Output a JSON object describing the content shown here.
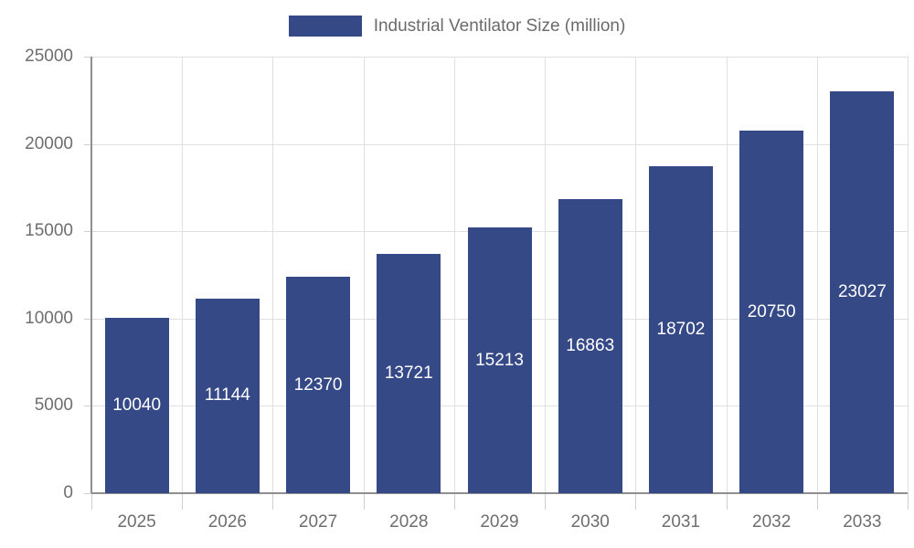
{
  "chart_data": {
    "type": "bar",
    "title": "Industrial Ventilator Size (million)",
    "categories": [
      "2025",
      "2026",
      "2027",
      "2028",
      "2029",
      "2030",
      "2031",
      "2032",
      "2033"
    ],
    "values": [
      10040,
      11144,
      12370,
      13721,
      15213,
      16863,
      18702,
      20750,
      23027
    ],
    "xlabel": "",
    "ylabel": "",
    "ylim": [
      0,
      25000
    ],
    "yticks": [
      0,
      5000,
      10000,
      15000,
      20000,
      25000
    ],
    "grid": true,
    "legend_position": "top-center",
    "value_label_position": "inside-center",
    "colors": {
      "bar": "#354987",
      "grid_line": "#e0e0e0",
      "axis_line": "#8f8f8f",
      "tick_line": "#cfcfcf",
      "tick_text": "#6e6e6e",
      "legend_text": "#6b6b6b",
      "value_label_text": "#ffffff",
      "background": "#ffffff"
    }
  }
}
